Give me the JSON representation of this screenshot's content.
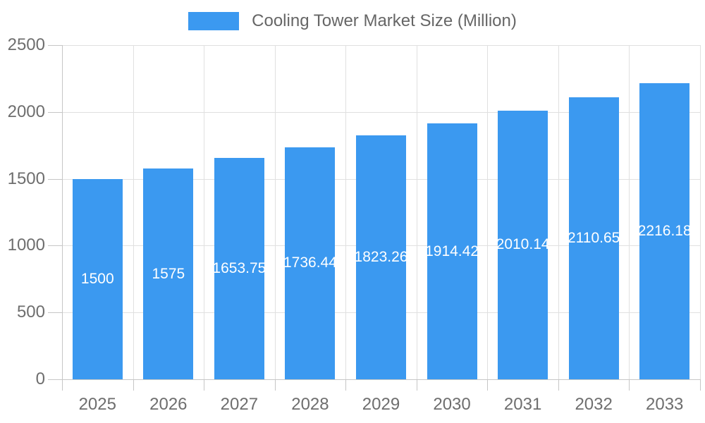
{
  "chart_data": {
    "type": "bar",
    "title": "Cooling Tower Market Size (Million)",
    "legend_entries": [
      "Cooling Tower Market Size (Million)"
    ],
    "legend_position": "top-center",
    "categories": [
      "2025",
      "2026",
      "2027",
      "2028",
      "2029",
      "2030",
      "2031",
      "2032",
      "2033"
    ],
    "values": [
      1500,
      1575,
      1653.75,
      1736.44,
      1823.26,
      1914.42,
      2010.14,
      2110.65,
      2216.18
    ],
    "value_labels": [
      "1500",
      "1575",
      "1653.75",
      "1736.44",
      "1823.26",
      "1914.42",
      "2010.14",
      "2110.65",
      "2216.18"
    ],
    "xlabel": "",
    "ylabel": "",
    "ylim": [
      0,
      2500
    ],
    "yticks": [
      0,
      500,
      1000,
      1500,
      2000,
      2500
    ],
    "grid": true,
    "bar_color": "#3b99f0",
    "value_label_color": "#ffffff"
  },
  "colors": {
    "background": "#ffffff",
    "bar": "#3b99f0",
    "gridline": "#e0e0e0",
    "axis_line": "#c6c6c6",
    "axis_text": "#6e6e6e",
    "legend_text": "#666666",
    "value_text": "#ffffff"
  }
}
